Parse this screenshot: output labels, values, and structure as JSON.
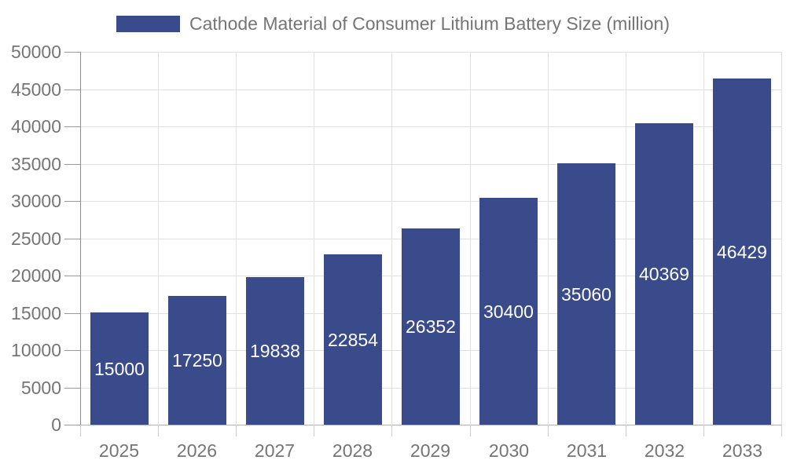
{
  "chart_data": {
    "type": "bar",
    "title": "Cathode Material of Consumer Lithium Battery Size (million)",
    "categories": [
      "2025",
      "2026",
      "2027",
      "2028",
      "2029",
      "2030",
      "2031",
      "2032",
      "2033"
    ],
    "values": [
      15000,
      17250,
      19838,
      22854,
      26352,
      30400,
      35060,
      40369,
      46429
    ],
    "series_name": "Cathode Material of Consumer Lithium Battery Size (million)",
    "xlabel": "",
    "ylabel": "",
    "ylim": [
      0,
      50000
    ],
    "ytick_step": 5000,
    "grid": true,
    "legend_position": "top-center",
    "value_labels": "inside-center"
  },
  "colors": {
    "bar_fill": "#3A4B8C",
    "value_label": "#ffffff",
    "axis_text": "#757575",
    "legend_text": "#757575",
    "gridline": "#e0e0e0",
    "y_axis_line": "#8c8c8c",
    "x_axis_line": "#b0b0b0",
    "y_tick": "#999999",
    "x_tick": "#cccccc",
    "background": "#ffffff"
  }
}
